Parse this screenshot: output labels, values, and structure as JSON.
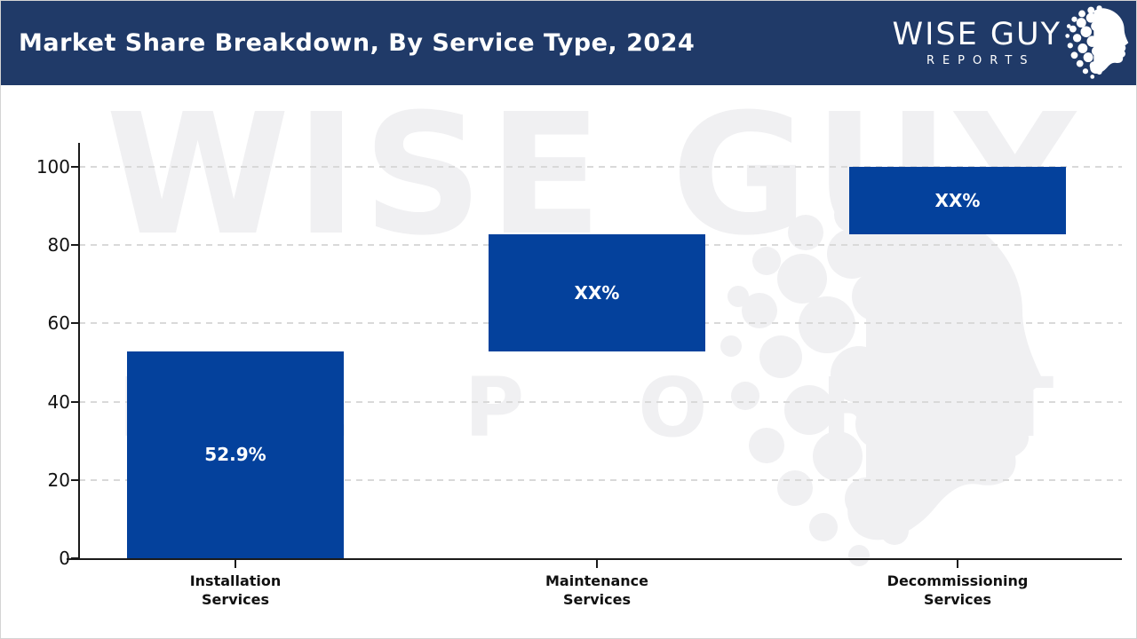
{
  "header": {
    "title": "Market Share Breakdown, By Service Type, 2024"
  },
  "logo": {
    "line1": "WISE GUY",
    "line2": "REPORTS"
  },
  "watermark": {
    "line1": "WISE GUY",
    "line2": "R E P O R T S"
  },
  "chart_data": {
    "type": "bar",
    "subtype": "waterfall",
    "title": "Market Share Breakdown, By Service Type, 2024",
    "categories": [
      [
        "Installation",
        "Services"
      ],
      [
        "Maintenance",
        "Services"
      ],
      [
        "Decommissioning",
        "Services"
      ]
    ],
    "segments": [
      {
        "start": 0,
        "end": 52.9,
        "label": "52.9%"
      },
      {
        "start": 52.9,
        "end": 82.8,
        "label": "XX%"
      },
      {
        "start": 82.8,
        "end": 100,
        "label": "XX%"
      }
    ],
    "ylim": [
      0,
      100
    ],
    "yticks": [
      0,
      20,
      40,
      60,
      80,
      100
    ],
    "grid": "horizontal dashed",
    "legend": "none",
    "bar_color": "#04419c",
    "value_label_color": "#ffffff",
    "axis_color": "#1a1a1a",
    "grid_color": "#d9d9d9",
    "header_color": "#203a68",
    "watermark_color": "#f0f0f2"
  }
}
